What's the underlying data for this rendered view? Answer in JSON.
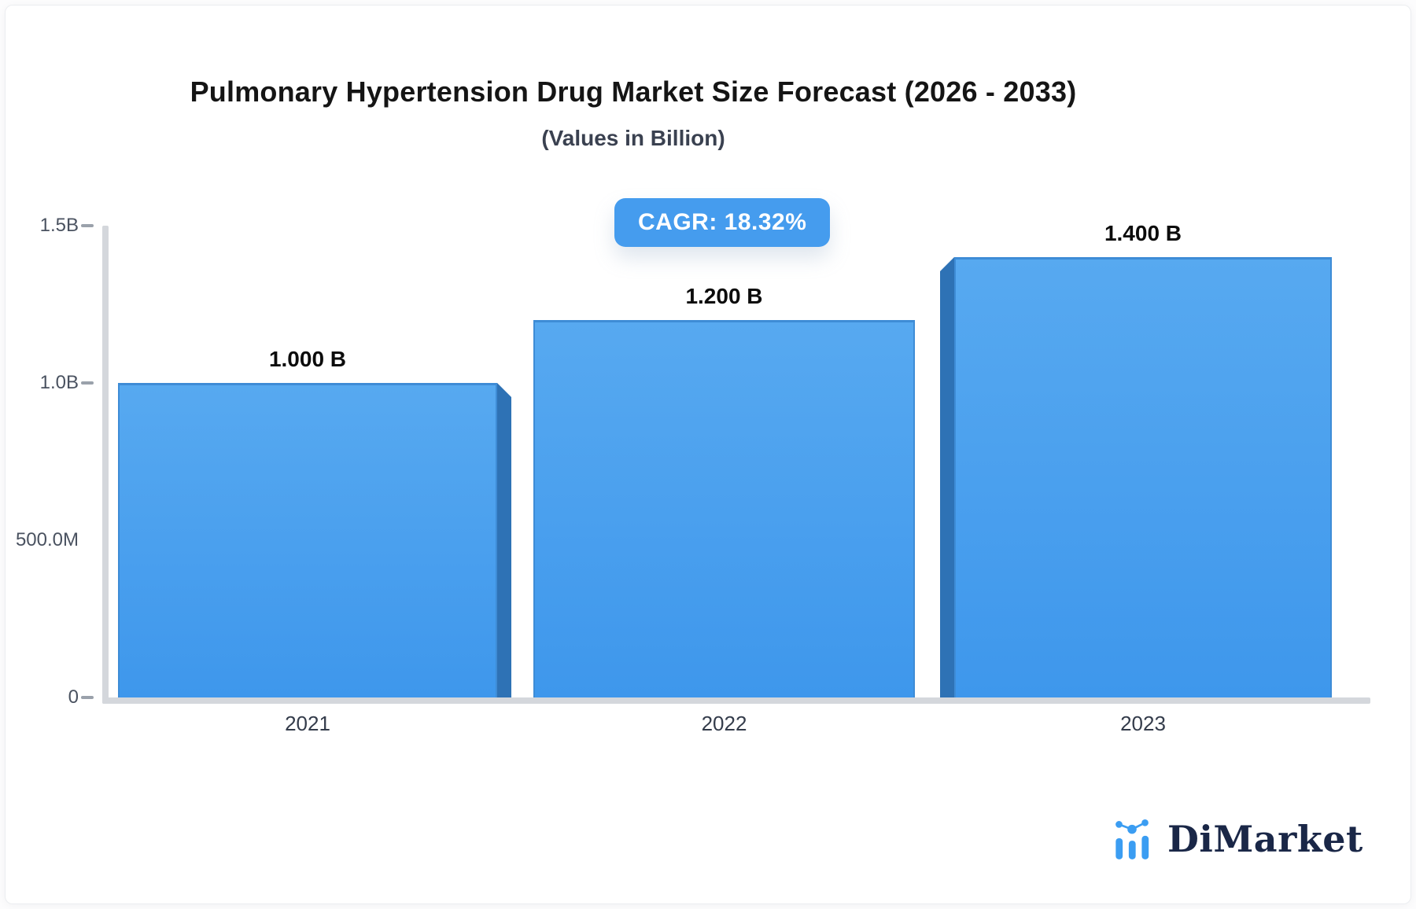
{
  "header": {
    "title": "Pulmonary Hypertension Drug Market Size Forecast (2026 - 2033)",
    "subtitle": "(Values in Billion)",
    "cagr_badge": "CAGR: 18.32%"
  },
  "chart_data": {
    "type": "bar",
    "title": "Pulmonary Hypertension Drug Market Size Forecast (2026 - 2033)",
    "subtitle": "(Values in Billion)",
    "annotation": "CAGR: 18.32%",
    "unit": "Billion",
    "categories": [
      "2021",
      "2022",
      "2023"
    ],
    "values": [
      1.0,
      1.2,
      1.4
    ],
    "value_labels": [
      "1.000 B",
      "1.200 B",
      "1.400 B"
    ],
    "ylim": [
      0,
      1.5
    ],
    "y_ticks": [
      {
        "label": "1.5B",
        "value": 1.5,
        "dash": true
      },
      {
        "label": "1.0B",
        "value": 1.0,
        "dash": true
      },
      {
        "label": "500.0M",
        "value": 0.5,
        "dash": false
      },
      {
        "label": "0",
        "value": 0.0,
        "dash": true
      }
    ],
    "grid": false,
    "legend": false
  },
  "brand": {
    "name": "DiMarket"
  },
  "colors": {
    "bar_top": "#57A9F0",
    "bar_bottom": "#3E97EC",
    "bar_border": "#3E8CD6",
    "bar_side": "#2E72B5",
    "badge_bg": "#459CEE",
    "axis_line": "#D4D7DC",
    "tick_mark": "#9AA1AB",
    "axis_label": "#4A5260",
    "category_label": "#343C4B",
    "value_label": "#0C0C0C",
    "title": "#151515",
    "subtitle": "#3A4150",
    "logo_blue": "#3B9DF2",
    "logo_navy": "#1A2747"
  }
}
